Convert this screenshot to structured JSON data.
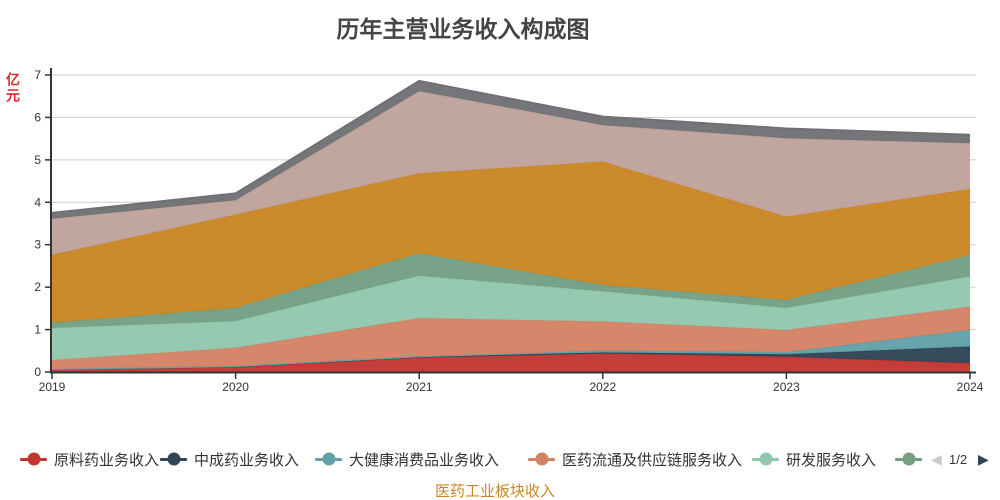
{
  "title": "历年主营业务收入构成图",
  "y_axis": {
    "unit": "亿元",
    "unit_color": "#d62b2b",
    "ticks": [
      "0",
      "1",
      "2",
      "3",
      "4",
      "5",
      "6",
      "7"
    ]
  },
  "x_axis": {
    "labels": [
      "2019",
      "2020",
      "2021",
      "2022",
      "2023",
      "2024"
    ]
  },
  "legend": {
    "items": [
      {
        "label": "原料药业务收入",
        "color": "#c23531"
      },
      {
        "label": "中成药业务收入",
        "color": "#2f4554"
      },
      {
        "label": "大健康消费品业务收入",
        "color": "#61a0a8"
      },
      {
        "label": "医药流通及供应链服务收入",
        "color": "#d48265"
      },
      {
        "label": "研发服务收入",
        "color": "#91c7ae"
      },
      {
        "label": "",
        "color": "#749f83"
      }
    ],
    "pager": {
      "prev": "◀",
      "info": "1/2",
      "next": "▶",
      "prev_color": "#cccccc",
      "next_color": "#2f4554"
    },
    "overflow_item": {
      "label": "医药工业板块收入",
      "color": "#ca8622"
    }
  },
  "chart_data": {
    "type": "area",
    "stacked": true,
    "title": "历年主营业务收入构成图",
    "xlabel": "",
    "ylabel": "亿元",
    "ylim": [
      0,
      7
    ],
    "grid": true,
    "legend_position": "bottom",
    "categories": [
      "2019",
      "2020",
      "2021",
      "2022",
      "2023",
      "2024"
    ],
    "series": [
      {
        "name": "原料药业务收入",
        "color": "#c23531",
        "values": [
          0.07,
          0.12,
          0.35,
          0.44,
          0.36,
          0.21
        ]
      },
      {
        "name": "中成药业务收入",
        "color": "#2f4554",
        "values": [
          0.0,
          0.01,
          0.01,
          0.02,
          0.06,
          0.39
        ]
      },
      {
        "name": "大健康消费品业务收入",
        "color": "#61a0a8",
        "values": [
          0.0,
          0.01,
          0.01,
          0.04,
          0.05,
          0.39
        ]
      },
      {
        "name": "医药流通及供应链服务收入",
        "color": "#d48265",
        "values": [
          0.21,
          0.43,
          0.9,
          0.69,
          0.52,
          0.55
        ]
      },
      {
        "name": "研发服务收入",
        "color": "#91c7ae",
        "values": [
          0.76,
          0.63,
          1.0,
          0.71,
          0.52,
          0.71
        ]
      },
      {
        "name": "",
        "color": "#749f83",
        "values": [
          0.12,
          0.31,
          0.53,
          0.15,
          0.19,
          0.51
        ]
      },
      {
        "name": "医药工业板块收入",
        "color": "#ca8622",
        "values": [
          1.6,
          2.2,
          1.88,
          2.91,
          1.96,
          1.55
        ]
      },
      {
        "name": "",
        "color": "#bda29a",
        "values": [
          0.85,
          0.34,
          1.94,
          0.86,
          1.85,
          1.08
        ]
      },
      {
        "name": "",
        "color": "#6e7074",
        "values": [
          0.14,
          0.16,
          0.24,
          0.2,
          0.23,
          0.2
        ]
      }
    ]
  }
}
